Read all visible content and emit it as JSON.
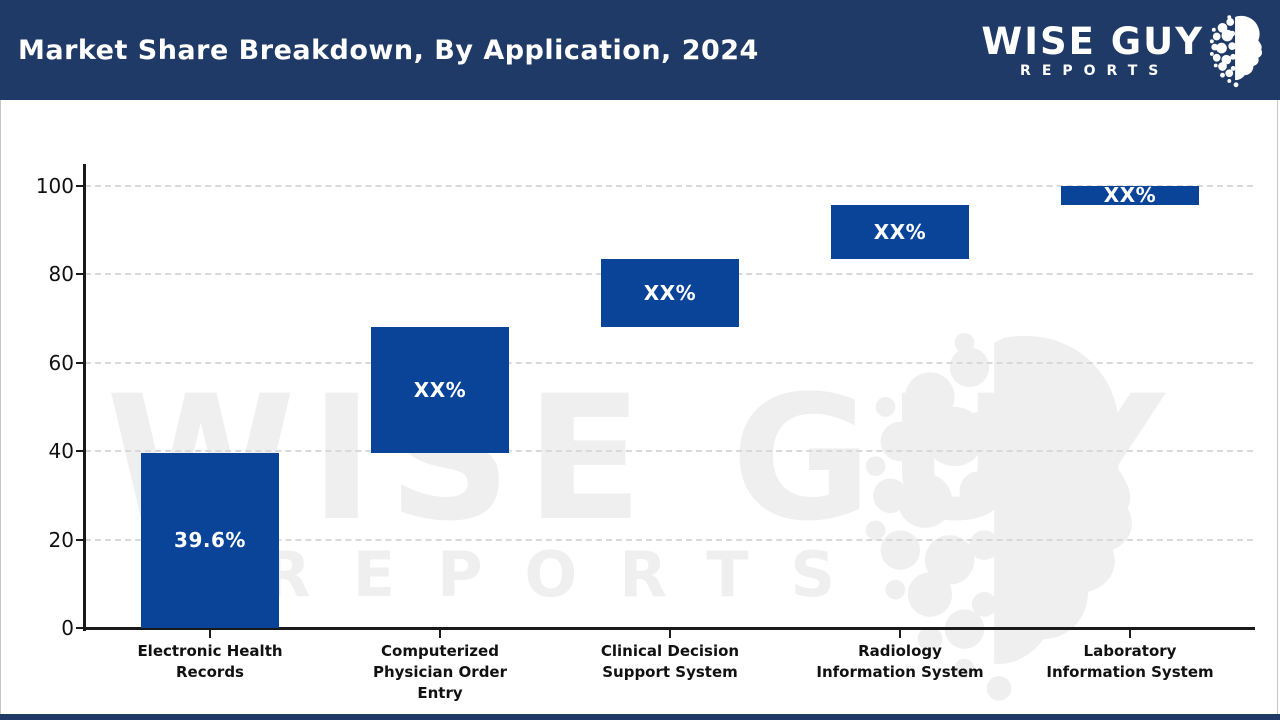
{
  "header": {
    "title": "Market Share Breakdown, By Application, 2024",
    "logo": {
      "line1": "WISE GUY",
      "line2": "REPORTS"
    }
  },
  "watermark": {
    "line1": "WISE GUY",
    "line2": "REPORTS"
  },
  "colors": {
    "header_bg": "#1f3a66",
    "footer_bg": "#1f3a66",
    "bar": "#0a4499",
    "bar_label": "#ffffff",
    "grid": "#d9d9d9",
    "axis": "#1a1a1a",
    "watermark": "#efefef"
  },
  "chart_data": {
    "type": "bar",
    "subtype": "waterfall",
    "title": "Market Share Breakdown, By Application, 2024",
    "categories": [
      "Electronic Health Records",
      "Computerized Physician Order Entry",
      "Clinical Decision Support System",
      "Radiology Information System",
      "Laboratory Information System"
    ],
    "category_lines": [
      [
        "Electronic Health",
        "Records"
      ],
      [
        "Computerized",
        "Physician Order",
        "Entry"
      ],
      [
        "Clinical Decision",
        "Support System"
      ],
      [
        "Radiology",
        "Information System"
      ],
      [
        "Laboratory",
        "Information System"
      ]
    ],
    "segments": [
      {
        "start": 0,
        "end": 39.6,
        "label": "39.6%"
      },
      {
        "start": 39.6,
        "end": 68,
        "label": "XX%"
      },
      {
        "start": 68,
        "end": 83.5,
        "label": "XX%"
      },
      {
        "start": 83.5,
        "end": 95.8,
        "label": "XX%"
      },
      {
        "start": 95.8,
        "end": 100,
        "label": "XX%"
      }
    ],
    "yticks": [
      0,
      20,
      40,
      60,
      80,
      100
    ],
    "ylim": [
      0,
      100
    ],
    "grid": "horizontal-dashed",
    "legend": "none"
  }
}
